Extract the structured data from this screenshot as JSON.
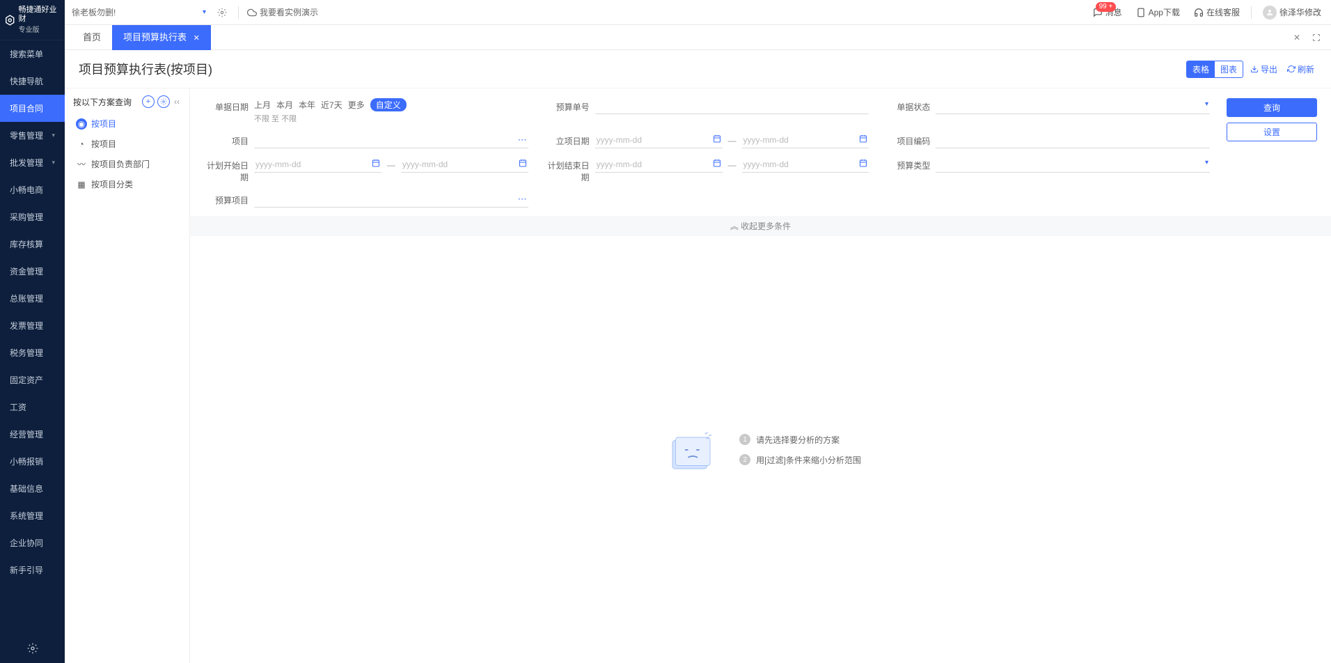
{
  "colors": {
    "primary": "#3c6cfc",
    "sidebar_bg": "#0d1f3c",
    "danger": "#ff4d4f",
    "border": "#e8e8e8",
    "text_muted": "#666",
    "placeholder": "#bbb"
  },
  "logo": {
    "brand": "畅捷通好业财",
    "edition": "专业版"
  },
  "sidebar": {
    "items": [
      {
        "label": "搜索菜单",
        "expandable": false
      },
      {
        "label": "快捷导航",
        "expandable": false
      },
      {
        "label": "项目合同",
        "expandable": false,
        "active": true
      },
      {
        "label": "零售管理",
        "expandable": true
      },
      {
        "label": "批发管理",
        "expandable": true
      },
      {
        "label": "小畅电商",
        "expandable": false
      },
      {
        "label": "采购管理",
        "expandable": false
      },
      {
        "label": "库存核算",
        "expandable": false
      },
      {
        "label": "资金管理",
        "expandable": false
      },
      {
        "label": "总账管理",
        "expandable": false
      },
      {
        "label": "发票管理",
        "expandable": false
      },
      {
        "label": "税务管理",
        "expandable": false
      },
      {
        "label": "固定资产",
        "expandable": false
      },
      {
        "label": "工资",
        "expandable": false
      },
      {
        "label": "经营管理",
        "expandable": false
      },
      {
        "label": "小畅报销",
        "expandable": false
      },
      {
        "label": "基础信息",
        "expandable": false
      },
      {
        "label": "系统管理",
        "expandable": false
      },
      {
        "label": "企业协同",
        "expandable": false
      },
      {
        "label": "新手引导",
        "expandable": false
      }
    ]
  },
  "topbar": {
    "tenant": "徐老板勿删!",
    "demo": "我要看实例演示",
    "messages": "消息",
    "messages_badge": "99 +",
    "app_download": "App下载",
    "support": "在线客服",
    "username": "徐泽华修改"
  },
  "tabs": {
    "home": "首页",
    "active": "项目预算执行表"
  },
  "page": {
    "title": "项目预算执行表(按项目)",
    "view_table": "表格",
    "view_chart": "图表",
    "export": "导出",
    "refresh": "刷新"
  },
  "filterSide": {
    "header": "按以下方案查询",
    "items": [
      {
        "label": "按项目",
        "active": true
      },
      {
        "label": "按项目",
        "active": false
      },
      {
        "label": "按项目负责部门",
        "active": false
      },
      {
        "label": "按项目分类",
        "active": false
      }
    ]
  },
  "form": {
    "labels": {
      "doc_date": "单据日期",
      "budget_no": "预算单号",
      "doc_status": "单据状态",
      "project": "项目",
      "setup_date": "立项日期",
      "project_code": "项目编码",
      "plan_start": "计划开始日期",
      "plan_end": "计划结束日期",
      "budget_type": "预算类型",
      "budget_item": "预算项目"
    },
    "date_quick": {
      "last_month": "上月",
      "this_month": "本月",
      "this_year": "本年",
      "last_7": "近7天",
      "more": "更多",
      "custom": "自定义"
    },
    "date_range_text": "不限 至 不限",
    "date_placeholder": "yyyy-mm-dd",
    "range_sep": "—",
    "btn_query": "查询",
    "btn_settings": "设置",
    "collapse": "收起更多条件"
  },
  "empty": {
    "step1": "请先选择要分析的方案",
    "step2": "用[过滤]条件来缩小分析范围"
  }
}
